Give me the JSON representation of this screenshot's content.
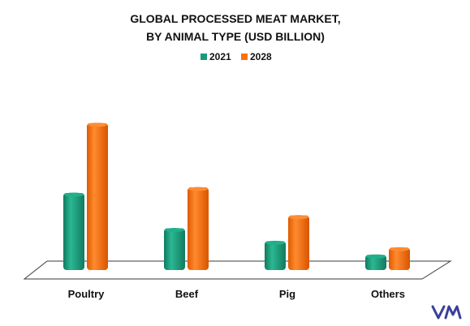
{
  "chart_data": {
    "type": "bar",
    "title_line1": "GLOBAL PROCESSED MEAT MARKET,",
    "title_line2": "BY ANIMAL TYPE (USD BILLION)",
    "categories": [
      "Poultry",
      "Beef",
      "Pig",
      "Others"
    ],
    "series": [
      {
        "name": "2021",
        "values": [
          96,
          52,
          36,
          19
        ],
        "color": "#1a9a7a"
      },
      {
        "name": "2028",
        "values": [
          183,
          103,
          68,
          28
        ],
        "color": "#ff7010"
      }
    ],
    "legend": "top-center",
    "grid": false,
    "xlabel": "",
    "ylabel": ""
  },
  "logo": {
    "text": "VMR",
    "color": "#3a3f99",
    "icon": "vmr-logo"
  }
}
